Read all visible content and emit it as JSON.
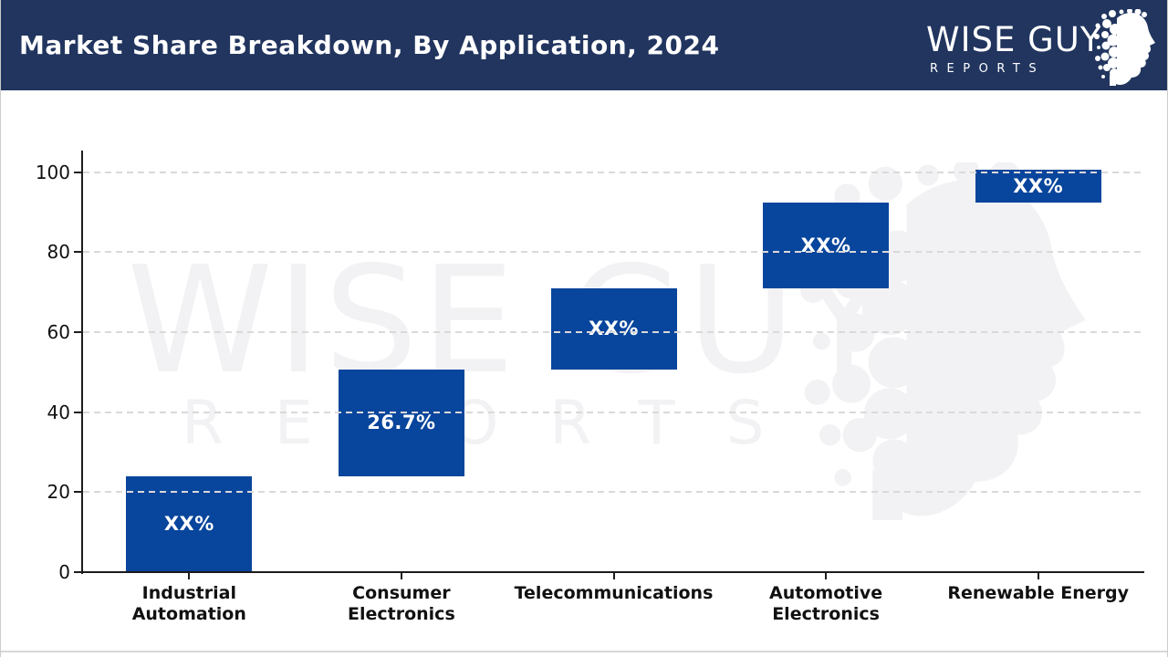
{
  "header": {
    "bg_color": "#21355F",
    "title": "Market Share Breakdown, By Application, 2024",
    "logo_line1": "WISE GUY",
    "logo_line2": "REPORTS"
  },
  "watermark": {
    "line1": "WISE GUY",
    "line2": "REPORTS"
  },
  "chart_data": {
    "type": "bar",
    "variant": "waterfall",
    "title": "Market Share Breakdown, By Application, 2024",
    "categories": [
      [
        "Industrial",
        "Automation"
      ],
      [
        "Consumer",
        "Electronics"
      ],
      [
        "Telecommunications"
      ],
      [
        "Automotive",
        "Electronics"
      ],
      [
        "Renewable Energy"
      ]
    ],
    "segments": [
      {
        "category": "Industrial Automation",
        "label": "XX%",
        "start": 0,
        "end": 24
      },
      {
        "category": "Consumer Electronics",
        "label": "26.7%",
        "start": 24,
        "end": 50.7
      },
      {
        "category": "Telecommunications",
        "label": "XX%",
        "start": 50.7,
        "end": 70.9
      },
      {
        "category": "Automotive Electronics",
        "label": "XX%",
        "start": 70.9,
        "end": 92.3
      },
      {
        "category": "Renewable Energy",
        "label": "XX%",
        "start": 92.3,
        "end": 100.6
      }
    ],
    "yticks": [
      0,
      20,
      40,
      60,
      80,
      100
    ],
    "ylim": [
      0,
      105
    ],
    "xlabel": "",
    "ylabel": "",
    "legend": null,
    "grid": {
      "style": "dashed",
      "color": "#d9d9d9",
      "drawn_over_bars": true
    },
    "bar_color": "#08459C",
    "bar_label_color": "#ffffff",
    "axis_color": "#1c1c1c"
  }
}
